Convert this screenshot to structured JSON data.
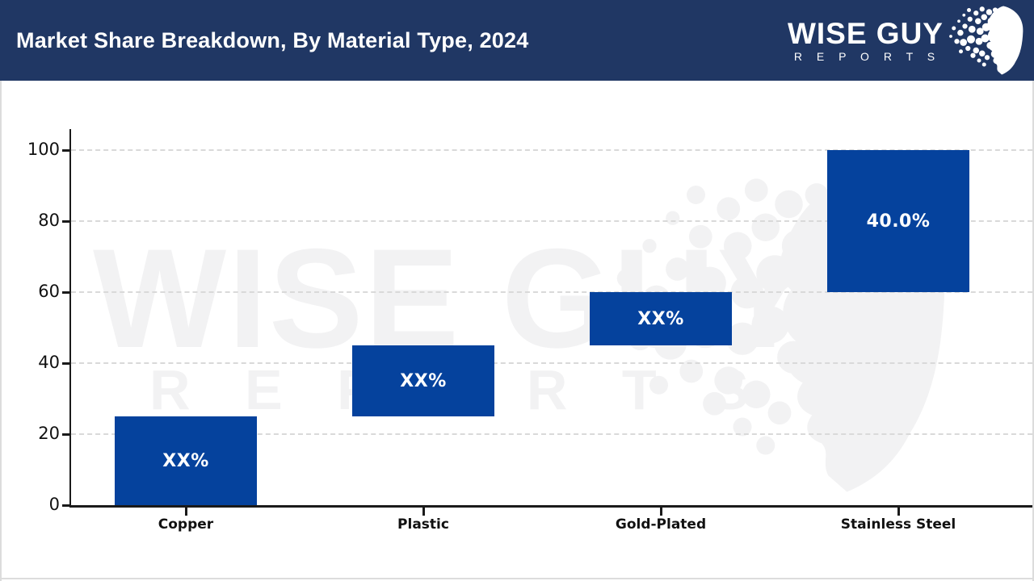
{
  "header": {
    "title": "Market Share Breakdown, By Material Type, 2024",
    "logo": {
      "line1": "WISE GUY",
      "line2": "R E P O R T S"
    }
  },
  "watermark": {
    "line1": "WISE GUY",
    "line2": "R E P O R T S"
  },
  "chart_data": {
    "type": "bar",
    "subtype": "floating-waterfall",
    "title": "Market Share Breakdown, By Material Type, 2024",
    "categories": [
      "Copper",
      "Plastic",
      "Gold-Plated",
      "Stainless Steel"
    ],
    "bars": [
      {
        "category": "Copper",
        "start": 0,
        "end": 25,
        "label": "XX%"
      },
      {
        "category": "Plastic",
        "start": 25,
        "end": 45,
        "label": "XX%"
      },
      {
        "category": "Gold-Plated",
        "start": 45,
        "end": 60,
        "label": "XX%"
      },
      {
        "category": "Stainless Steel",
        "start": 60,
        "end": 100,
        "label": "40.0%"
      }
    ],
    "y_ticks": [
      0,
      20,
      40,
      60,
      80,
      100
    ],
    "ylim": [
      0,
      105
    ],
    "xlabel": "",
    "ylabel": "",
    "grid": "horizontal-dashed",
    "legend": "none",
    "bar_color": "#05429D",
    "value_label_color": "#ffffff"
  },
  "colors": {
    "header_bg": "#203764",
    "header_text": "#ffffff",
    "bar": "#05429D",
    "grid": "#d9d9d9",
    "axis": "#1a1a1a",
    "watermark": "#f2f2f3"
  }
}
